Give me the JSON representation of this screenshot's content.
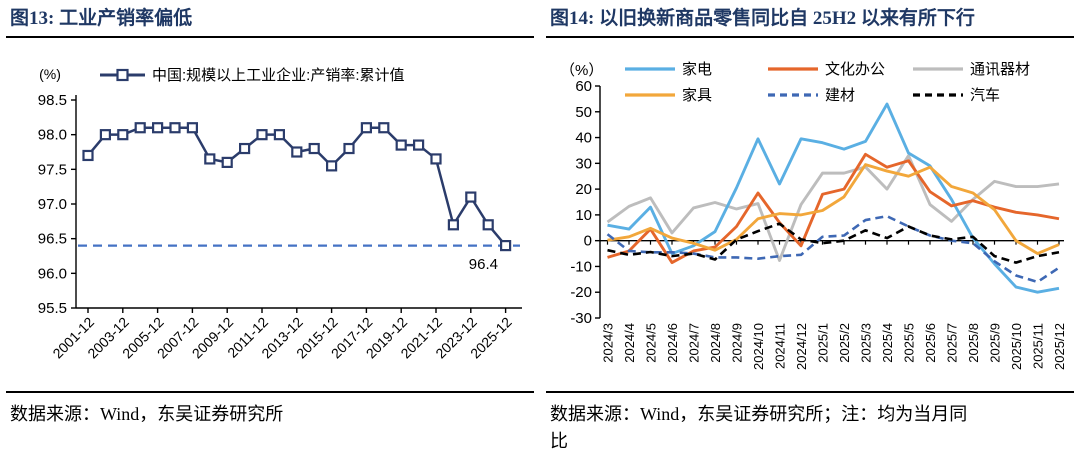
{
  "page": {
    "title_color": "#1F3864",
    "background": "#ffffff"
  },
  "figures": [
    {
      "title": "图13:  工业产销率偏低",
      "source": "数据来源：Wind，东吴证券研究所"
    },
    {
      "title": "图14:  以旧换新商品零售同比自 25H2 以来有所下行",
      "source": "数据来源：Wind，东吴证券研究所；注：均为当月同比"
    }
  ],
  "chart_data": [
    {
      "type": "line",
      "title": "工业产销率偏低",
      "unit": "(%)",
      "legend": [
        "中国:规模以上工业企业:产销率:累计值"
      ],
      "line_color": "#2B3C6B",
      "marker": "open-square",
      "x": [
        "2001-12",
        "2002-12",
        "2003-12",
        "2004-12",
        "2005-12",
        "2006-12",
        "2007-12",
        "2008-12",
        "2009-12",
        "2010-12",
        "2011-12",
        "2012-12",
        "2013-12",
        "2014-12",
        "2015-12",
        "2016-12",
        "2017-12",
        "2018-12",
        "2019-12",
        "2020-12",
        "2021-12",
        "2022-12",
        "2023-12",
        "2024-12",
        "2025-12"
      ],
      "values": [
        97.7,
        98.0,
        98.0,
        98.1,
        98.1,
        98.1,
        98.1,
        97.65,
        97.6,
        97.8,
        98.0,
        98.0,
        97.75,
        97.8,
        97.55,
        97.8,
        98.1,
        98.1,
        97.85,
        97.85,
        97.65,
        96.7,
        97.1,
        96.7,
        96.4
      ],
      "ylim": [
        95.5,
        98.5
      ],
      "ytick_step": 0.5,
      "xtick_every": 2,
      "grid": false,
      "legend_position": "top",
      "reference_line": {
        "value": 96.4,
        "color": "#4472C4",
        "style": "dashed"
      },
      "annotation": {
        "text": "96.4",
        "near": "last-point"
      }
    },
    {
      "type": "line",
      "title": "以旧换新商品零售同比自 25H2 以来有所下行",
      "unit": "（%）",
      "x": [
        "2024/3",
        "2024/4",
        "2024/5",
        "2024/6",
        "2024/7",
        "2024/8",
        "2024/9",
        "2024/10",
        "2024/11",
        "2024/12",
        "2025/1",
        "2025/2",
        "2025/3",
        "2025/4",
        "2025/5",
        "2025/6",
        "2025/7",
        "2025/8",
        "2025/9",
        "2025/10",
        "2025/11",
        "2025/12"
      ],
      "ylim": [
        -30,
        60
      ],
      "ytick_step": 10,
      "zero_axis": true,
      "grid": false,
      "legend_position": "top",
      "legend_rows": [
        [
          "家电",
          "文化办公",
          "通讯器材"
        ],
        [
          "家具",
          "建材",
          "汽车"
        ]
      ],
      "series": [
        {
          "name": "通讯器材",
          "color": "#BDBDBD",
          "dash": null,
          "values": [
            7.2,
            13.3,
            16.6,
            3,
            12.7,
            14.8,
            12.3,
            14.4,
            -7.7,
            14,
            26.2,
            26.2,
            28.6,
            20,
            33,
            14,
            7.5,
            16,
            23,
            21,
            21,
            22
          ]
        },
        {
          "name": "家电",
          "color": "#5AAFE3",
          "dash": null,
          "values": [
            6,
            4.5,
            13,
            -5,
            -2,
            3.5,
            20.5,
            39.5,
            22,
            39.5,
            38,
            35.5,
            38.5,
            53,
            34,
            29,
            16,
            1,
            -9,
            -18,
            -20,
            -18.5
          ]
        },
        {
          "name": "文化办公",
          "color": "#E5662B",
          "dash": null,
          "values": [
            -6.5,
            -4,
            4.5,
            -8.5,
            -4,
            -2.5,
            5.5,
            18.5,
            7,
            -2,
            18,
            20,
            33.5,
            28.5,
            31,
            19,
            13.5,
            15.5,
            13,
            11,
            10,
            8.5
          ]
        },
        {
          "name": "家具",
          "color": "#F2A73B",
          "dash": null,
          "values": [
            0.2,
            1.5,
            4.8,
            1,
            -1,
            -3.7,
            0.5,
            8.5,
            10.5,
            10,
            11.7,
            17,
            29.5,
            27,
            25,
            28.5,
            21,
            18.5,
            12,
            0,
            -5,
            -1.5
          ]
        },
        {
          "name": "建材",
          "color": "#3E68B4",
          "dash": "8 5",
          "values": [
            2.5,
            -4,
            -4.5,
            -4.5,
            -5,
            -6.5,
            -6.5,
            -7,
            -6,
            -5.5,
            1.5,
            2,
            8,
            9.5,
            5.5,
            2,
            0,
            -1,
            -8,
            -13.5,
            -16,
            -10.5
          ]
        },
        {
          "name": "汽车",
          "color": "#000000",
          "dash": "8 5",
          "values": [
            -3.7,
            -5.5,
            -4.4,
            -6,
            -5,
            -7.3,
            0.4,
            3.7,
            6.6,
            0.5,
            -1,
            0,
            4,
            1,
            5.5,
            2,
            0.5,
            1.5,
            -6,
            -8.5,
            -6,
            -4.5
          ]
        }
      ]
    }
  ]
}
